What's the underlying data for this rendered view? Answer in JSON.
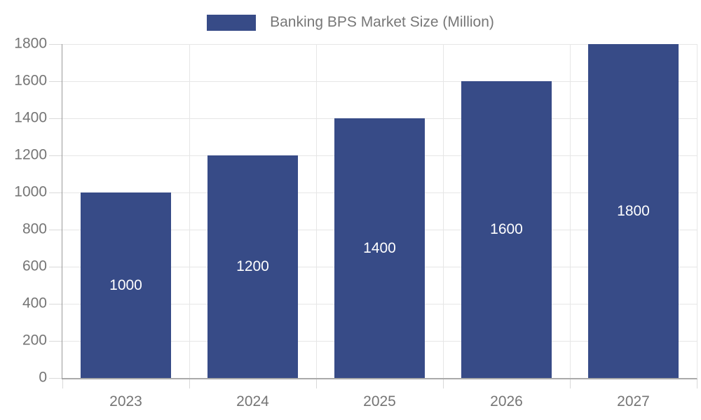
{
  "legend": {
    "label": "Banking BPS Market Size (Million)"
  },
  "chart_data": {
    "type": "bar",
    "title": "Banking BPS Market Size (Million)",
    "categories": [
      "2023",
      "2024",
      "2025",
      "2026",
      "2027"
    ],
    "values": [
      1000,
      1200,
      1400,
      1600,
      1800
    ],
    "value_labels": [
      "1000",
      "1200",
      "1400",
      "1600",
      "1800"
    ],
    "series": [
      {
        "name": "Banking BPS Market Size (Million)",
        "values": [
          1000,
          1200,
          1400,
          1600,
          1800
        ]
      }
    ],
    "xlabel": "",
    "ylabel": "",
    "ylim": [
      0,
      1800
    ],
    "y_ticks": [
      0,
      200,
      400,
      600,
      800,
      1000,
      1200,
      1400,
      1600,
      1800
    ],
    "grid": true,
    "legend_position": "top-center",
    "colors": {
      "bar": "#374b87",
      "value_label": "#ffffff",
      "axis_text": "#757575",
      "legend_text": "#777777",
      "gridline": "#e6e6e6",
      "y_axis_line": "#999999",
      "baseline": "#aaaaaa",
      "background": "#ffffff"
    }
  }
}
